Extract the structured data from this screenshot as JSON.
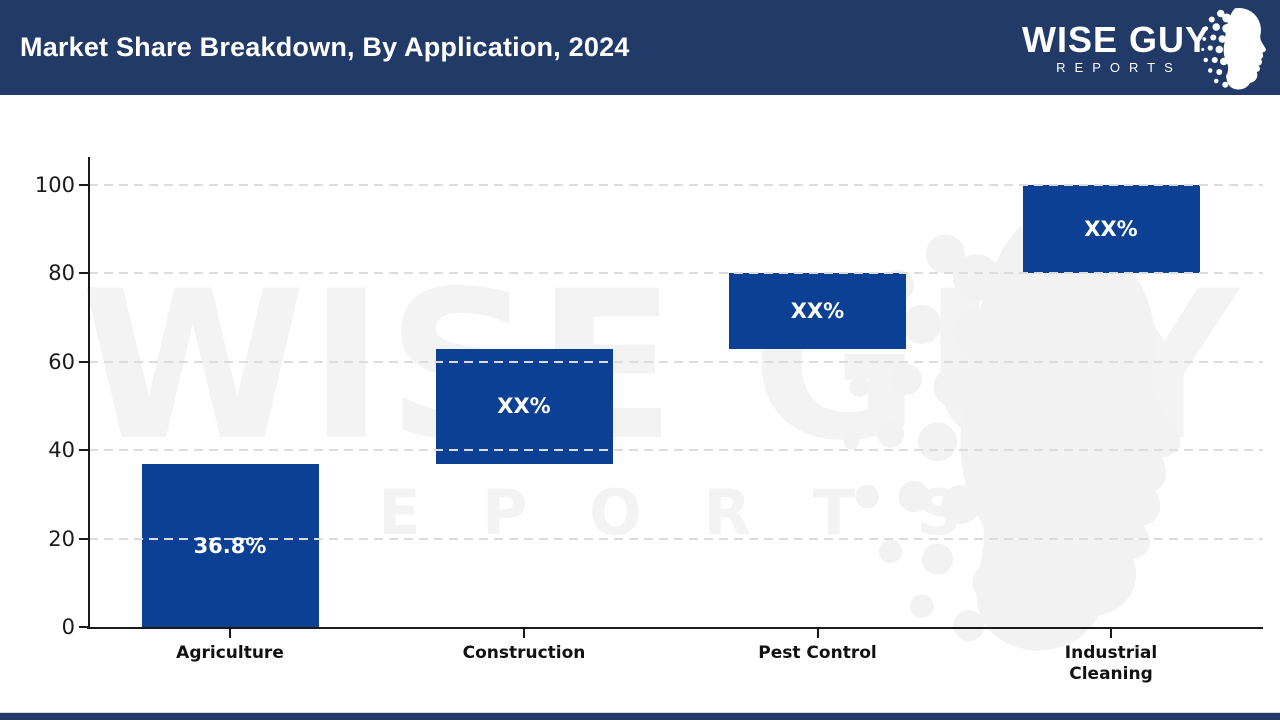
{
  "header": {
    "title": "Market Share Breakdown, By Application, 2024",
    "bg_color": "#213a68",
    "logo": {
      "line1": "WISE GUY",
      "line2": "REPORTS"
    }
  },
  "watermark": {
    "line1": "WISE GUY",
    "line2": "R E P O R T S"
  },
  "footer": {
    "bg_color": "#213a68"
  },
  "chart_data": {
    "type": "bar",
    "subtype": "floating-segment-breakdown",
    "title": "Market Share Breakdown, By Application, 2024",
    "categories": [
      "Agriculture",
      "Construction",
      "Pest Control",
      "Industrial Cleaning"
    ],
    "segments": [
      {
        "category": "Agriculture",
        "start": 0,
        "end": 36.8,
        "label": "36.8%"
      },
      {
        "category": "Construction",
        "start": 36.8,
        "end": 63,
        "label": "XX%"
      },
      {
        "category": "Pest Control",
        "start": 63,
        "end": 80,
        "label": "XX%"
      },
      {
        "category": "Industrial Cleaning",
        "start": 80,
        "end": 100,
        "label": "XX%"
      }
    ],
    "ylim": [
      0,
      100
    ],
    "yticks": [
      0,
      20,
      40,
      60,
      80,
      100
    ],
    "xlabel": "",
    "ylabel": "",
    "bar_color": "#0b4095",
    "label_color": "#ffffff",
    "grid": "dashed-horizontal",
    "grid_color": "#dcdcdc",
    "legend": "none"
  }
}
